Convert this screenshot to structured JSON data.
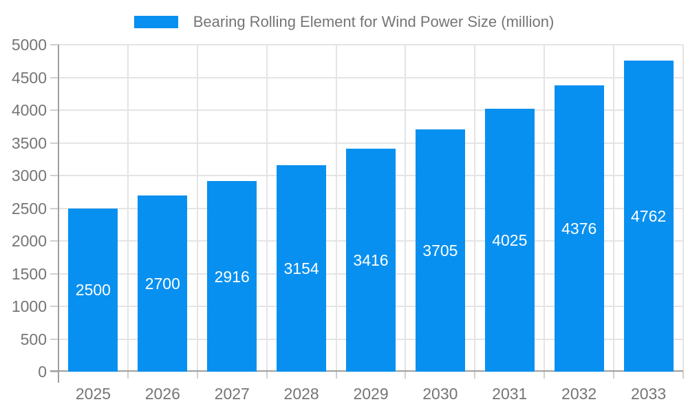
{
  "chart_data": {
    "type": "bar",
    "title": "Bearing Rolling Element for Wind Power Size (million)",
    "categories": [
      "2025",
      "2026",
      "2027",
      "2028",
      "2029",
      "2030",
      "2031",
      "2032",
      "2033"
    ],
    "values": [
      2500,
      2700,
      2916,
      3154,
      3416,
      3705,
      4025,
      4376,
      4762
    ],
    "series": [
      {
        "name": "Bearing Rolling Element for Wind Power Size (million)",
        "values": [
          2500,
          2700,
          2916,
          3154,
          3416,
          3705,
          4025,
          4376,
          4762
        ]
      }
    ],
    "xlabel": "",
    "ylabel": "",
    "ylim": [
      0,
      5000
    ],
    "ytick_step": 500,
    "ytick_labels": [
      "0",
      "500",
      "1000",
      "1500",
      "2000",
      "2500",
      "3000",
      "3500",
      "4000",
      "4500",
      "5000"
    ],
    "grid": true,
    "legend_position": "top",
    "value_labels": "inside-center",
    "colors": {
      "bar": "#0890F0",
      "value_label": "#FFFFFF",
      "axis_text": "#757575",
      "grid_line": "#E4E4E4",
      "tick": "#CFCFCF",
      "axis_line": "#9E9E9E",
      "background": "#FFFFFF"
    }
  }
}
